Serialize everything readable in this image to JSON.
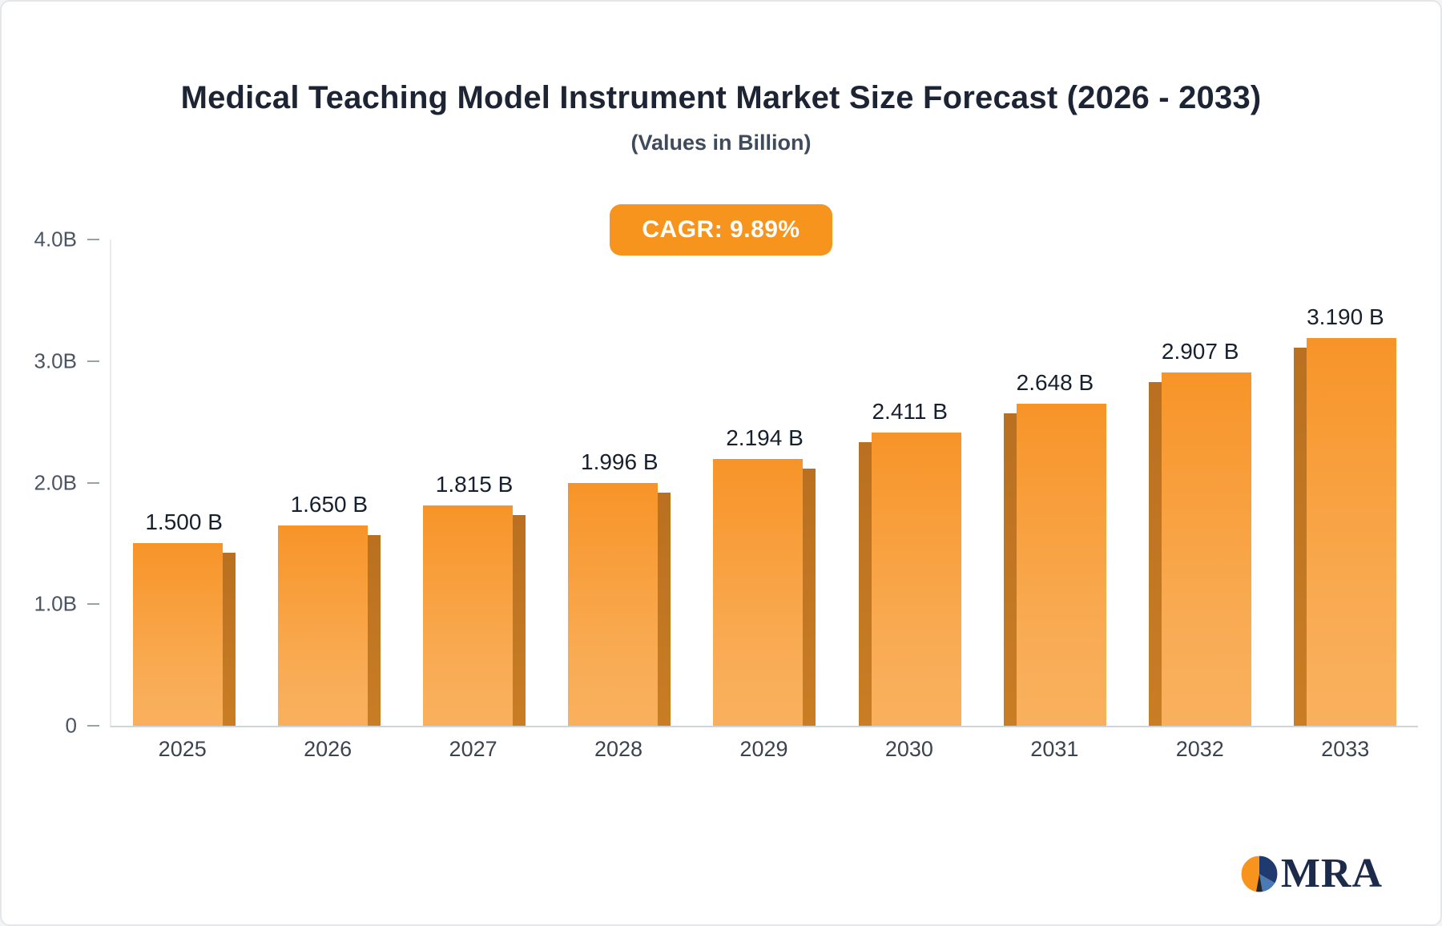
{
  "chart_data": {
    "type": "bar",
    "title": "Medical Teaching Model Instrument Market Size Forecast (2026 - 2033)",
    "subtitle": "(Values in Billion)",
    "cagr_label": "CAGR: 9.89%",
    "categories": [
      "2025",
      "2026",
      "2027",
      "2028",
      "2029",
      "2030",
      "2031",
      "2032",
      "2033"
    ],
    "values": [
      1.5,
      1.65,
      1.815,
      1.996,
      2.194,
      2.411,
      2.648,
      2.907,
      3.19
    ],
    "bar_labels": [
      "1.500 B",
      "1.650 B",
      "1.815 B",
      "1.996 B",
      "2.194 B",
      "2.411 B",
      "2.648 B",
      "2.907 B",
      "3.190 B"
    ],
    "xlabel": "",
    "ylabel": "",
    "ylim": [
      0,
      4.0
    ],
    "yticks": [
      {
        "label": "4.0B",
        "value": 4.0
      },
      {
        "label": "3.0B",
        "value": 3.0
      },
      {
        "label": "2.0B",
        "value": 2.0
      },
      {
        "label": "1.0B",
        "value": 1.0
      },
      {
        "label": "0",
        "value": 0.0
      }
    ],
    "grid": false,
    "legend": false
  },
  "logo": {
    "text": "MRA"
  },
  "colors": {
    "accent": "#f7941e",
    "bar_top": "#f79428",
    "bar_bottom": "#f9ab53",
    "bar_side": "#c97d24",
    "title_text": "#1d2433",
    "baseline": "#cfd4da",
    "logo_navy": "#1c2b4a"
  }
}
